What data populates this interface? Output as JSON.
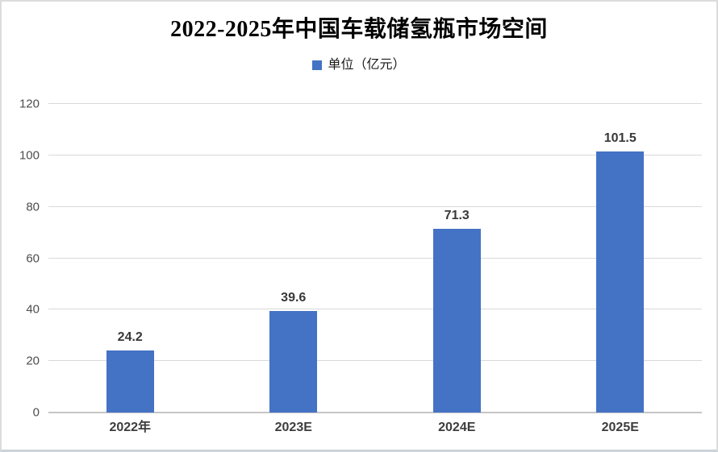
{
  "chart": {
    "title": "2022-2025年中国车载储氢瓶市场空间",
    "legend_label": "单位（亿元）"
  },
  "colors": {
    "accent_blue": "#4472C4",
    "gridline": "#d9d9d9",
    "axis_line": "#c6c6c6"
  },
  "chart_data": {
    "type": "bar",
    "title": "2022-2025年中国车载储氢瓶市场空间",
    "legend": [
      "单位（亿元）"
    ],
    "legend_position": "top",
    "categories": [
      "2022年",
      "2023E",
      "2024E",
      "2025E"
    ],
    "values": [
      24.2,
      39.6,
      71.3,
      101.5
    ],
    "data_labels": [
      "24.2",
      "39.6",
      "71.3",
      "101.5"
    ],
    "xlabel": "",
    "ylabel": "",
    "ylim": [
      0,
      120
    ],
    "ytick_step": 20,
    "ytick_labels": [
      "0",
      "20",
      "40",
      "60",
      "80",
      "100",
      "120"
    ],
    "grid": true,
    "bar_color": "#4472C4"
  }
}
